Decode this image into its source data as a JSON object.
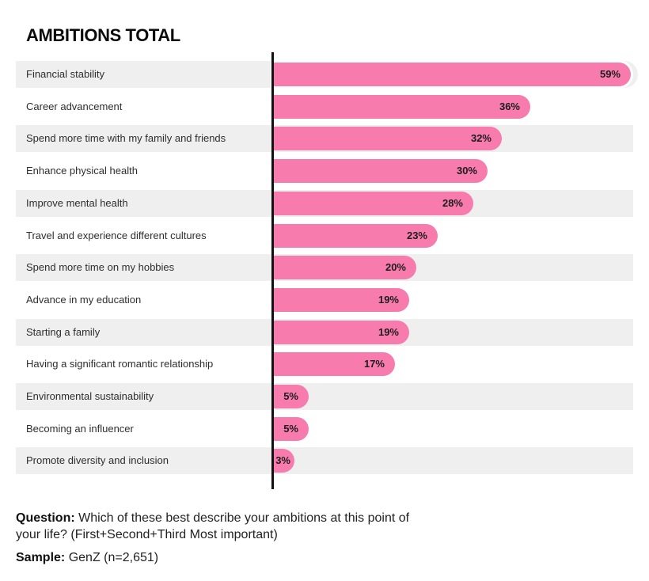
{
  "chart_data": {
    "type": "bar",
    "orientation": "horizontal",
    "title": "AMBITIONS TOTAL",
    "categories": [
      "Financial stability",
      "Career advancement",
      "Spend more time with my family and friends",
      "Enhance physical health",
      "Improve mental health",
      "Travel and experience different cultures",
      "Spend more time on my hobbies",
      "Advance in my education",
      "Starting a family",
      "Having a significant romantic relationship",
      "Environmental sustainability",
      "Becoming an influencer",
      "Promote diversity and inclusion"
    ],
    "values": [
      59,
      36,
      32,
      30,
      28,
      23,
      20,
      19,
      19,
      17,
      5,
      5,
      3
    ],
    "value_labels": [
      "59%",
      "36%",
      "32%",
      "30%",
      "28%",
      "23%",
      "20%",
      "19%",
      "19%",
      "17%",
      "5%",
      "5%",
      "3%"
    ],
    "xlabel": "",
    "ylabel": "",
    "legend": "none",
    "grid": "off",
    "bar_color": "#F87BAD",
    "row_stripe_color": "#EFEFEF",
    "axis_line_color": "#111111",
    "value_label_position": "inside-end"
  },
  "footer": {
    "question_label": "Question:",
    "question_text": " Which of these best describe your ambitions at this point of your life? (First+Second+Third Most important)",
    "sample_label": "Sample:",
    "sample_text": " GenZ (n=2,651)"
  }
}
